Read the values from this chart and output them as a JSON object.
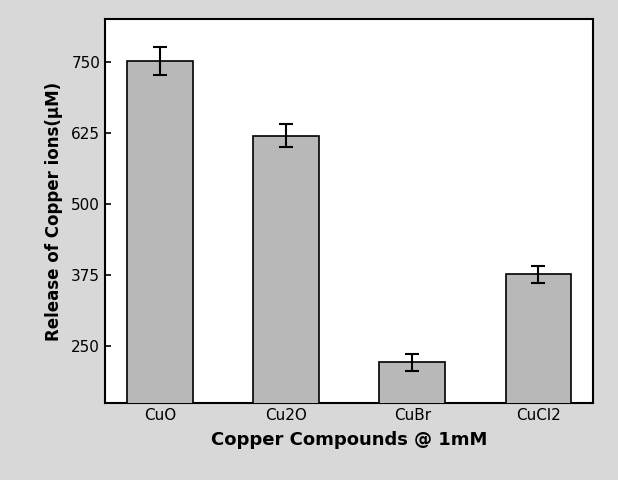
{
  "categories": [
    "CuO",
    "Cu2O",
    "CuBr",
    "CuCl2"
  ],
  "values": [
    752,
    620,
    222,
    377
  ],
  "errors": [
    25,
    20,
    15,
    15
  ],
  "bar_color": "#b8b8b8",
  "bar_edgecolor": "#000000",
  "xlabel": "Copper Compounds @ 1mM",
  "ylabel": "Release of Copper ions(μM)",
  "ylim": [
    150,
    825
  ],
  "yticks": [
    250,
    375,
    500,
    625,
    750
  ],
  "xlabel_fontsize": 13,
  "ylabel_fontsize": 12,
  "tick_fontsize": 11,
  "bar_width": 0.52,
  "background_color": "#d8d8d8",
  "plot_bg_color": "#ffffff",
  "error_capsize": 5,
  "error_linewidth": 1.5,
  "error_color": "#000000",
  "spine_linewidth": 1.5
}
